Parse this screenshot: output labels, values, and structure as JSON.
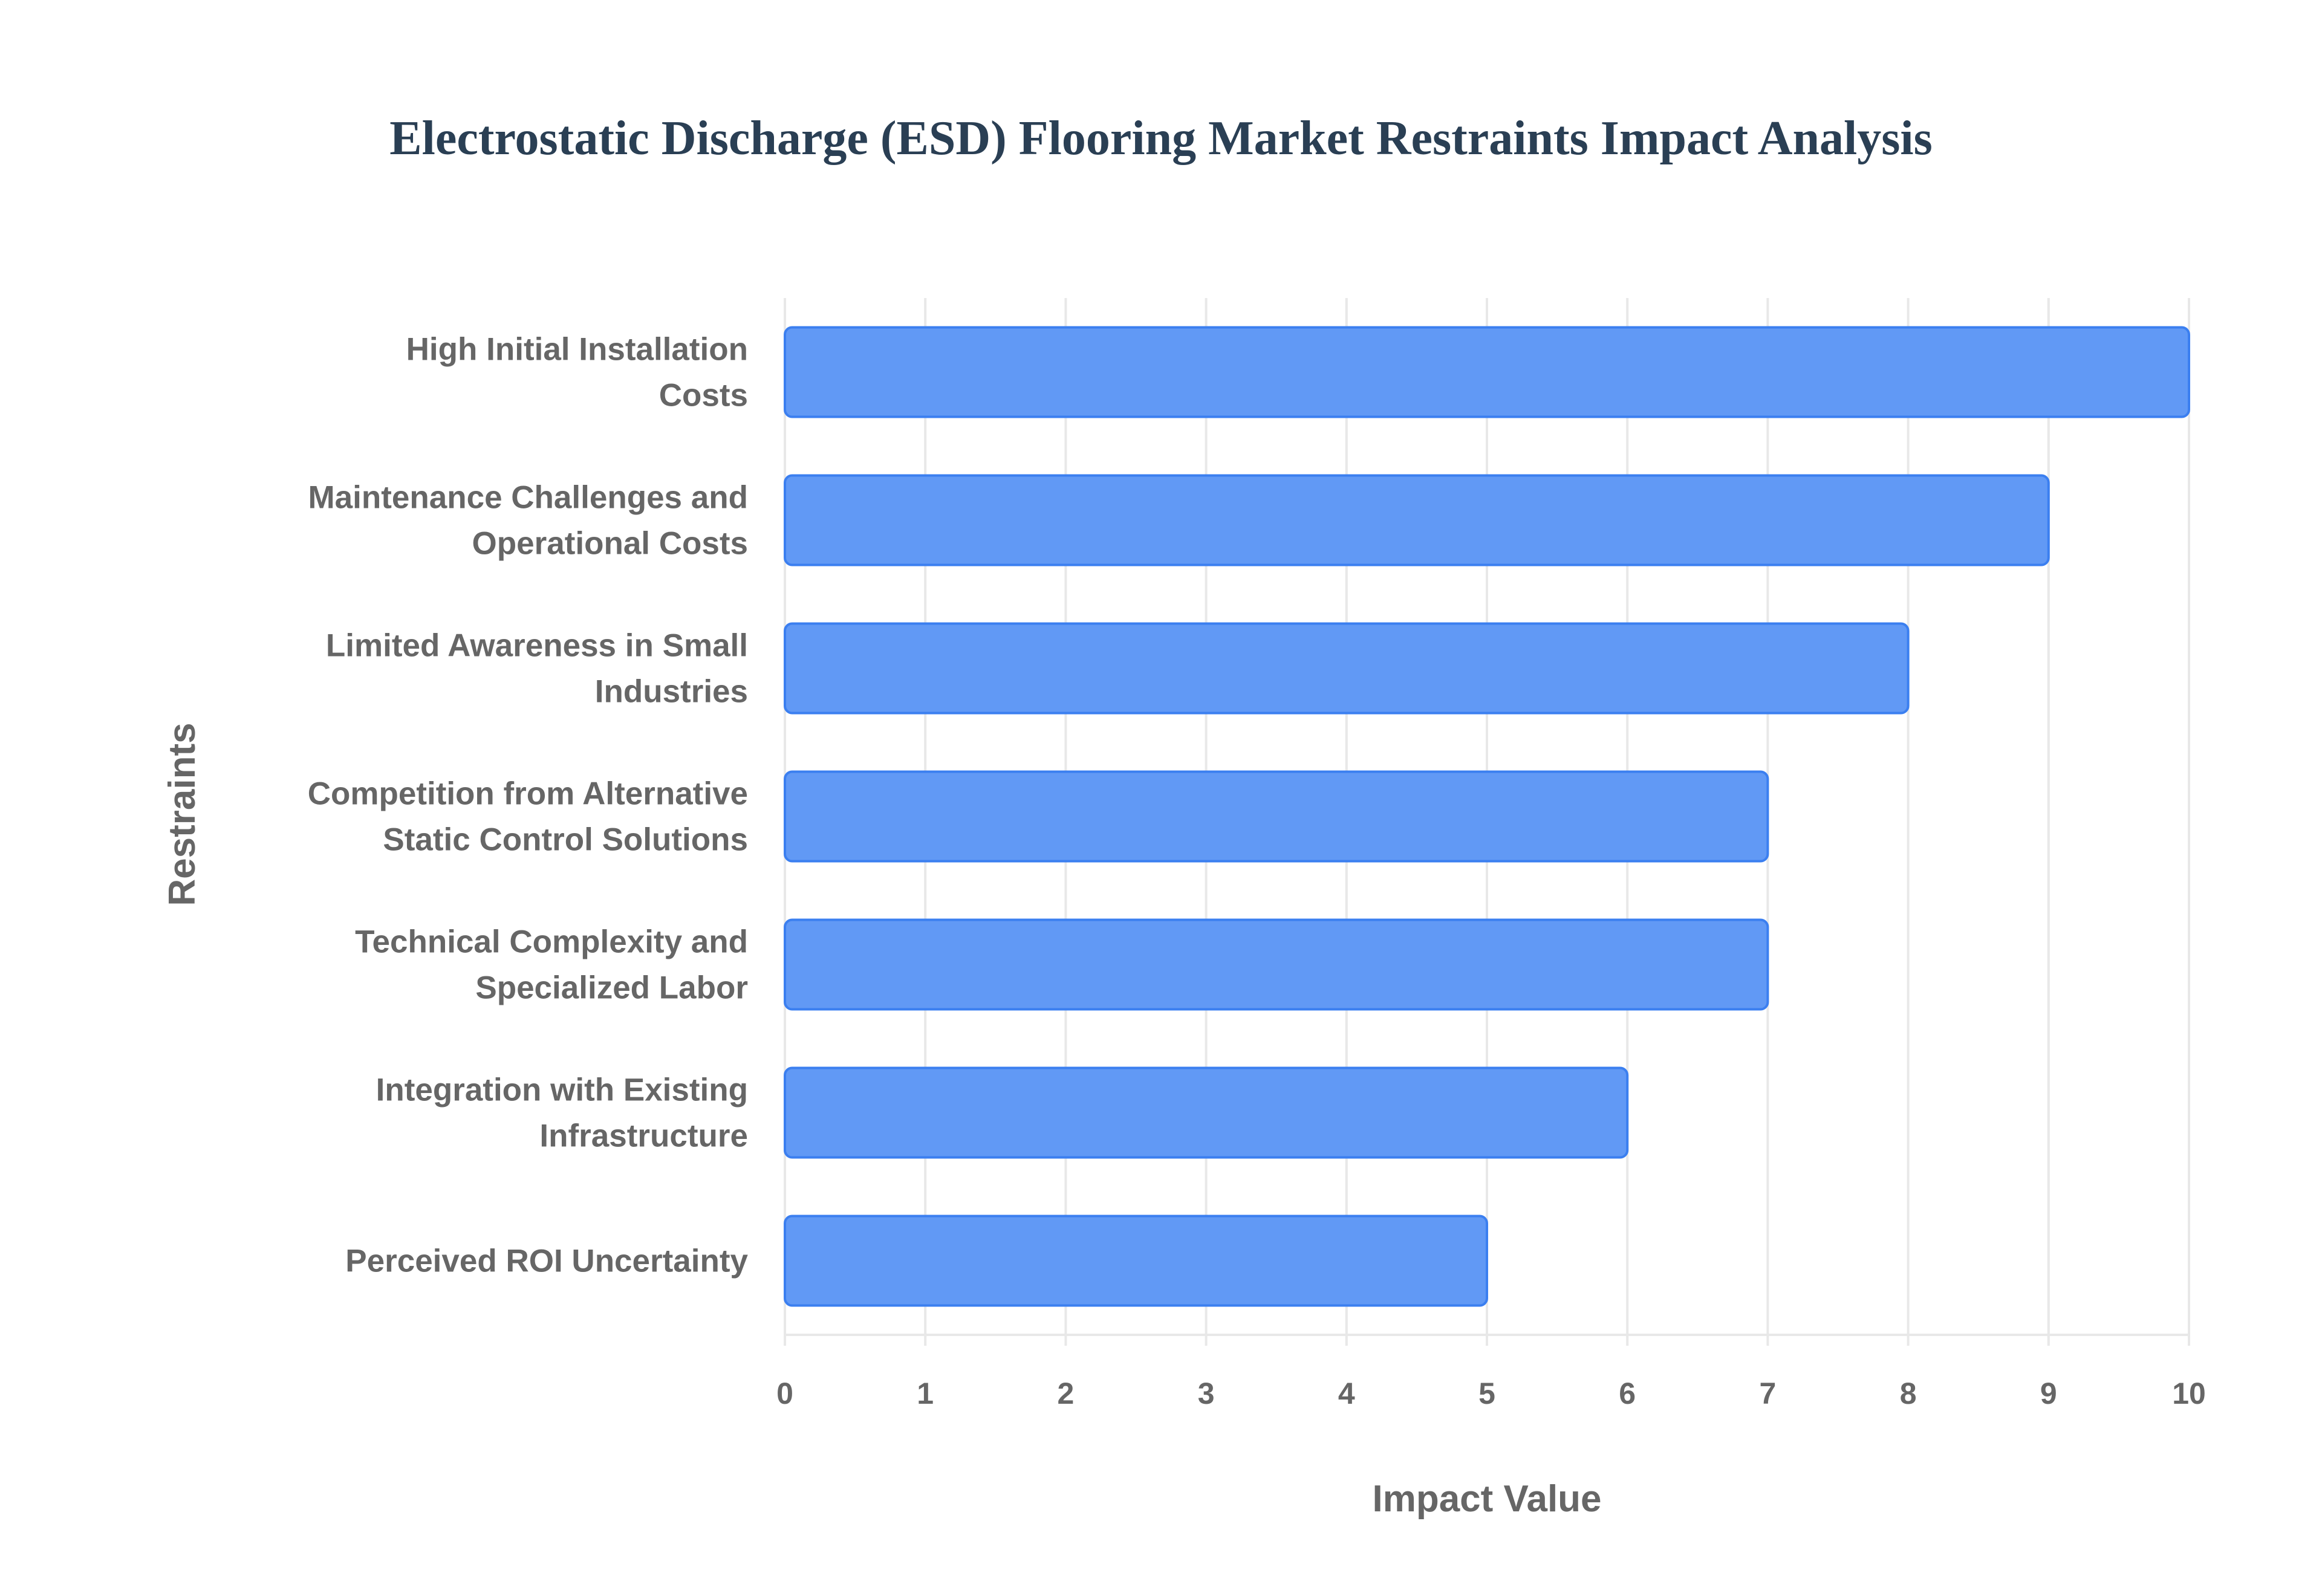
{
  "chart_data": {
    "type": "bar",
    "orientation": "horizontal",
    "title": "Electrostatic Discharge (ESD) Flooring Market Restraints Impact Analysis",
    "xlabel": "Impact Value",
    "ylabel": "Restraints",
    "xlim": [
      0,
      10
    ],
    "xticks": [
      "0",
      "1",
      "2",
      "3",
      "4",
      "5",
      "6",
      "7",
      "8",
      "9",
      "10"
    ],
    "grid": true,
    "categories": [
      [
        "High Initial Installation",
        "Costs"
      ],
      [
        "Maintenance Challenges and",
        "Operational Costs"
      ],
      [
        "Limited Awareness in Small",
        "Industries"
      ],
      [
        "Competition from Alternative",
        "Static Control Solutions"
      ],
      [
        "Technical Complexity and",
        "Specialized Labor"
      ],
      [
        "Integration with Existing",
        "Infrastructure"
      ],
      [
        "Perceived ROI Uncertainty"
      ]
    ],
    "values": [
      10,
      9,
      8,
      7,
      7,
      6,
      5
    ],
    "colors": {
      "bar": "#6199f5",
      "bar_edge": "#3b7ff0",
      "grid": "#e8e8e8",
      "text": "#666666",
      "title": "#2a3f54"
    }
  }
}
